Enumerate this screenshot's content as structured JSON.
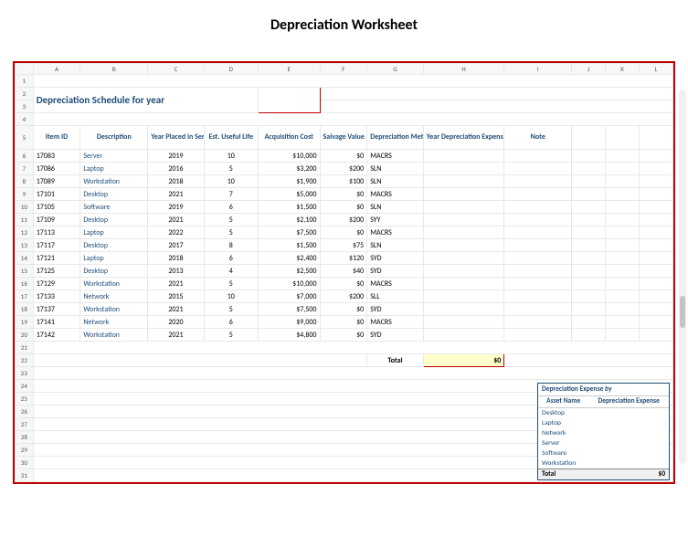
{
  "page": {
    "title": "Depreciation Worksheet"
  },
  "colors": {
    "frame_border": "#c00000",
    "header_text": "#1f4e79",
    "grid_line": "#e8e8e8",
    "total_fill": "#ffffcc"
  },
  "columns": [
    "A",
    "B",
    "C",
    "D",
    "E",
    "F",
    "G",
    "H",
    "I",
    "J",
    "K",
    "L"
  ],
  "schedule_title": "Depreciation Schedule for year",
  "headers": {
    "item_id": "Item ID",
    "description": "Description",
    "year_placed": "Year Placed in Service",
    "useful_life": "Est. Useful Life",
    "acq_cost": "Acquisition Cost",
    "salvage": "Salvage Value",
    "method": "Depreciation Method",
    "year_dep": "Year Depreciation Expense",
    "note": "Note"
  },
  "rows": [
    {
      "id": "17083",
      "desc": "Server",
      "year": "2019",
      "life": "10",
      "cost": "$10,000",
      "salv": "$0",
      "method": "MACRS"
    },
    {
      "id": "17086",
      "desc": "Laptop",
      "year": "2016",
      "life": "5",
      "cost": "$3,200",
      "salv": "$200",
      "method": "SLN"
    },
    {
      "id": "17089",
      "desc": "Workstation",
      "year": "2018",
      "life": "10",
      "cost": "$1,900",
      "salv": "$100",
      "method": "SLN"
    },
    {
      "id": "17101",
      "desc": "Desktop",
      "year": "2021",
      "life": "7",
      "cost": "$5,000",
      "salv": "$0",
      "method": "MACRS"
    },
    {
      "id": "17105",
      "desc": "Software",
      "year": "2019",
      "life": "6",
      "cost": "$1,500",
      "salv": "$0",
      "method": "SLN"
    },
    {
      "id": "17109",
      "desc": "Desktop",
      "year": "2021",
      "life": "5",
      "cost": "$2,100",
      "salv": "$200",
      "method": "SYY"
    },
    {
      "id": "17113",
      "desc": "Laptop",
      "year": "2022",
      "life": "5",
      "cost": "$7,500",
      "salv": "$0",
      "method": "MACRS"
    },
    {
      "id": "17117",
      "desc": "Desktop",
      "year": "2017",
      "life": "8",
      "cost": "$1,500",
      "salv": "$75",
      "method": "SLN"
    },
    {
      "id": "17121",
      "desc": "Laptop",
      "year": "2018",
      "life": "6",
      "cost": "$2,400",
      "salv": "$120",
      "method": "SYD"
    },
    {
      "id": "17125",
      "desc": "Desktop",
      "year": "2013",
      "life": "4",
      "cost": "$2,500",
      "salv": "$40",
      "method": "SYD"
    },
    {
      "id": "17129",
      "desc": "Workstation",
      "year": "2021",
      "life": "5",
      "cost": "$10,000",
      "salv": "$0",
      "method": "MACRS"
    },
    {
      "id": "17133",
      "desc": "Network",
      "year": "2015",
      "life": "10",
      "cost": "$7,000",
      "salv": "$200",
      "method": "SLL"
    },
    {
      "id": "17137",
      "desc": "Workstation",
      "year": "2021",
      "life": "5",
      "cost": "$7,500",
      "salv": "$0",
      "method": "SYD"
    },
    {
      "id": "17141",
      "desc": "Network",
      "year": "2020",
      "life": "6",
      "cost": "$9,000",
      "salv": "$0",
      "method": "MACRS"
    },
    {
      "id": "17142",
      "desc": "Workstation",
      "year": "2021",
      "life": "5",
      "cost": "$4,800",
      "salv": "$0",
      "method": "SYD"
    }
  ],
  "total": {
    "label": "Total",
    "value": "$0"
  },
  "summary": {
    "title": "Depreciation Expense",
    "by": "by",
    "col1": "Asset Name",
    "col2": "Depreciation Expense",
    "items": [
      "Desktop",
      "Laptop",
      "Network",
      "Server",
      "Software",
      "Workstation"
    ],
    "total_label": "Total",
    "total_value": "$0"
  }
}
